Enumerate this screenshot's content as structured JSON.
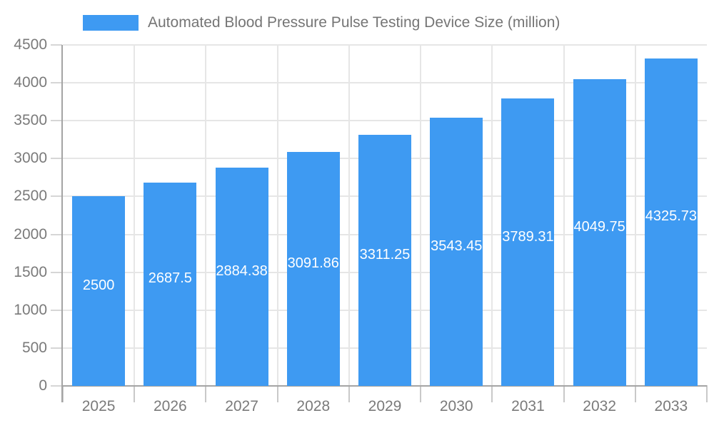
{
  "chart_data": {
    "type": "bar",
    "title": "Automated Blood Pressure Pulse Testing Device Size (million)",
    "legend": [
      {
        "label": "Automated Blood Pressure Pulse Testing Device Size (million)",
        "color": "#3E9AF2"
      }
    ],
    "legend_position": "top-left",
    "categories": [
      "2025",
      "2026",
      "2027",
      "2028",
      "2029",
      "2030",
      "2031",
      "2032",
      "2033"
    ],
    "values": [
      2500,
      2687.5,
      2884.38,
      3091.86,
      3311.25,
      3543.45,
      3789.31,
      4049.75,
      4325.73
    ],
    "bar_labels": [
      "2500",
      "2687.5",
      "2884.38",
      "3091.86",
      "3311.25",
      "3543.45",
      "3789.31",
      "4049.75",
      "4325.73"
    ],
    "xlabel": "",
    "ylabel": "",
    "ylim": [
      0,
      4500
    ],
    "ytick_step": 500,
    "ytick_labels": [
      "0",
      "500",
      "1000",
      "1500",
      "2000",
      "2500",
      "3000",
      "3500",
      "4000",
      "4500"
    ],
    "grid": true,
    "value_labels_inside_bars": true,
    "colors": {
      "bar": "#3E9AF2",
      "bar_value_text": "#ffffff",
      "legend_text": "#757575",
      "axis_text": "#7a7a7a",
      "axis_line": "#a4a4a4",
      "grid_line": "#e6e6e6",
      "tick_line": "#d6d6d6"
    }
  }
}
